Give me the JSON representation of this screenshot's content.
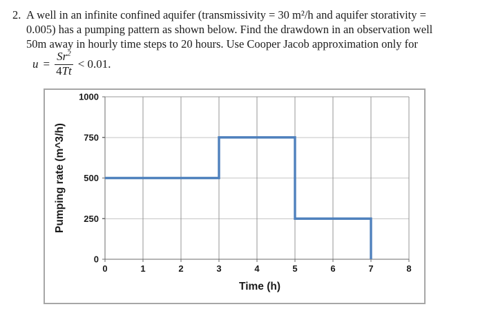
{
  "problem": {
    "number": "2.",
    "lines": [
      "A well in an infinite confined aquifer (transmissivity = 30 m²/h and aquifer storativity =",
      "0.005) has a pumping pattern as shown below. Find the drawdown in an observation well",
      "50m away in hourly time steps to 20 hours. Use Cooper Jacob approximation only for"
    ],
    "formula": {
      "lhs_var": "u",
      "equals": "=",
      "numerator_base": "Sr",
      "numerator_exponent": "2",
      "denominator_coefficient": "4",
      "denominator_vars": "Tt",
      "comparison": "< 0.01."
    }
  },
  "chart_data": {
    "type": "line",
    "line_style": "step",
    "title": "",
    "xlabel": "Time (h)",
    "ylabel": "Pumping rate (m^3/h)",
    "xlim": [
      0,
      8
    ],
    "ylim": [
      0,
      1000
    ],
    "xticks": [
      0,
      1,
      2,
      3,
      4,
      5,
      6,
      7,
      8
    ],
    "yticks": [
      0,
      250,
      500,
      750,
      1000
    ],
    "grid": true,
    "legend": false,
    "series": [
      {
        "name": "Pumping rate",
        "color": "#4f81bd",
        "line_width": 3.4,
        "points": [
          [
            0,
            500
          ],
          [
            3,
            500
          ],
          [
            3,
            750
          ],
          [
            5,
            750
          ],
          [
            5,
            250
          ],
          [
            7,
            250
          ],
          [
            7,
            0
          ]
        ]
      }
    ],
    "colors": {
      "vertical_gridline": "#949494",
      "horizontal_gridline": "#c6c6c6",
      "plot_top_border": "#9a9a9a",
      "axis": "#6b6b6b",
      "chart_border": "#a6a6a6"
    }
  }
}
